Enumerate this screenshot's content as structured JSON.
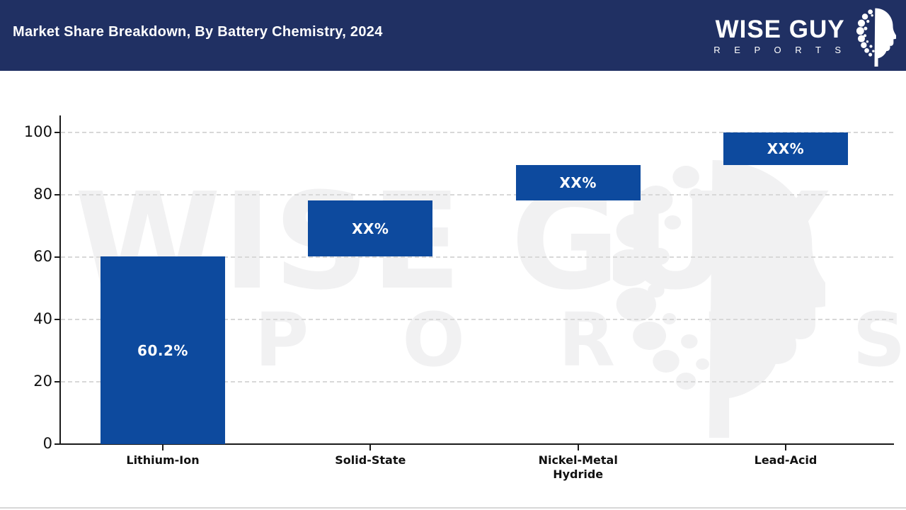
{
  "header": {
    "title": "Market Share Breakdown, By Battery Chemistry, 2024",
    "logo_line1": "WISE GUY",
    "logo_line2": "R E P O R T S"
  },
  "watermark": {
    "line1": "WISE GUY",
    "line2": "P O R T S"
  },
  "colors": {
    "header_bg": "#203063",
    "bar_fill": "#0d4a9e",
    "gridline": "#d8d8d8",
    "axis": "#1b1b1b",
    "watermark": "#f1f1f2",
    "bar_label_text": "#ffffff"
  },
  "chart_data": {
    "type": "bar",
    "subtype": "waterfall",
    "title": "Market Share Breakdown, By Battery Chemistry, 2024",
    "xlabel": "",
    "ylabel": "",
    "categories": [
      "Lithium-Ion",
      "Solid-State",
      "Nickel-Metal Hydride",
      "Lead-Acid"
    ],
    "xtick_labels": [
      "Lithium-Ion",
      "Solid-State",
      "Nickel-Metal\nHydride",
      "Lead-Acid"
    ],
    "segments": [
      {
        "category": "Lithium-Ion",
        "start": 0,
        "end": 60.2,
        "value": 60.2,
        "label": "60.2%"
      },
      {
        "category": "Solid-State",
        "start": 60.2,
        "end": 78.1,
        "value": 17.9,
        "label": "XX%"
      },
      {
        "category": "Nickel-Metal Hydride",
        "start": 78.1,
        "end": 89.5,
        "value": 11.4,
        "label": "XX%"
      },
      {
        "category": "Lead-Acid",
        "start": 89.5,
        "end": 100,
        "value": 10.5,
        "label": "XX%"
      }
    ],
    "yticks": [
      0,
      20,
      40,
      60,
      80,
      100
    ],
    "ylim": [
      0,
      105
    ],
    "grid": "horizontal-dashed",
    "legend": "none"
  }
}
